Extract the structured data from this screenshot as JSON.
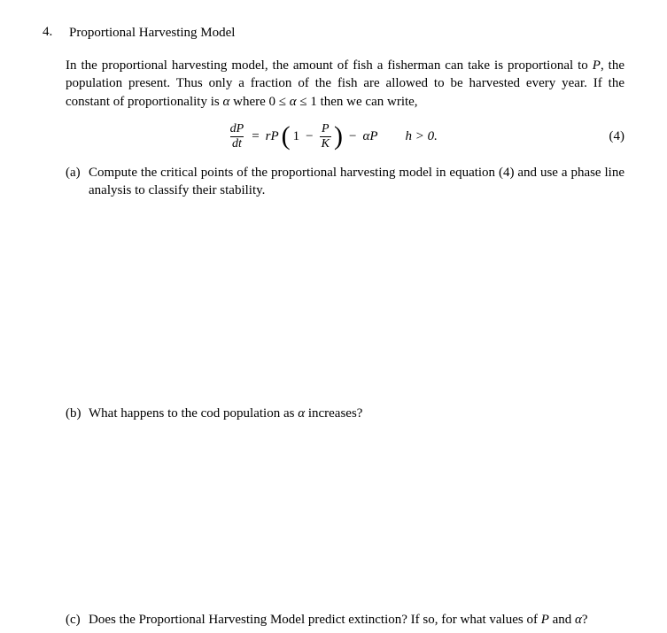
{
  "problem": {
    "number": "4.",
    "title": "Proportional Harvesting Model",
    "intro": "In the proportional harvesting model, the amount of fish a fisherman can take is proportional to P, the population present. Thus only a fraction of the fish are allowed to be harvested every year. If the constant of proportionality is α where 0 ≤ α ≤ 1 then we can write,"
  },
  "equation": {
    "frac_num": "dP",
    "frac_den": "dt",
    "eq": "=",
    "rP": "rP",
    "lparen": "(",
    "one": "1",
    "minus1": "−",
    "inner_num": "P",
    "inner_den": "K",
    "rparen": ")",
    "minus2": "−",
    "alphaP": "αP",
    "condition": "h > 0.",
    "number": "(4)"
  },
  "parts": {
    "a": {
      "label": "(a)",
      "text": "Compute the critical points of the proportional harvesting model in equation (4) and use a phase line analysis to classify their stability."
    },
    "b": {
      "label": "(b)",
      "text": "What happens to the cod population as α increases?"
    },
    "c": {
      "label": "(c)",
      "text": "Does the Proportional Harvesting Model predict extinction? If so, for what values of P and α?"
    }
  }
}
